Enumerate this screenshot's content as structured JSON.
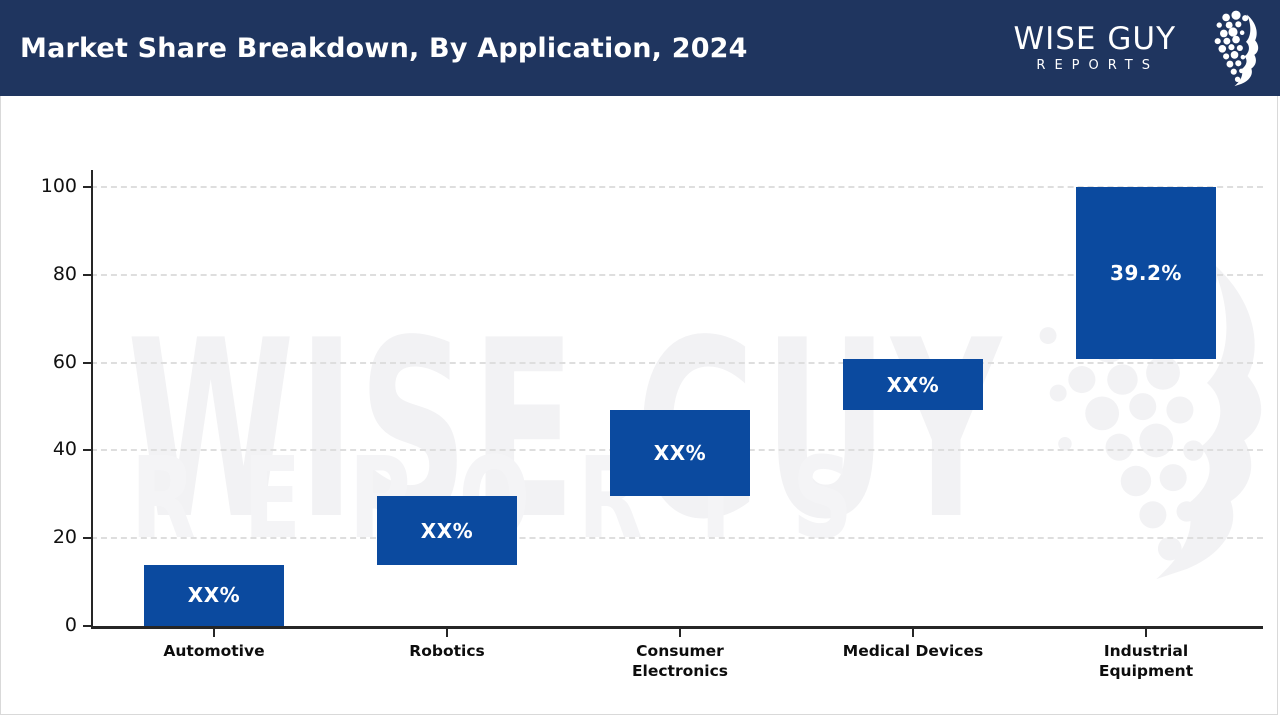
{
  "header": {
    "title": "Market Share Breakdown, By Application, 2024",
    "logo": {
      "wordmark": "WISE GUY",
      "subtitle": "REPORTS"
    }
  },
  "watermark": {
    "wordmark": "WISE GUY",
    "subtitle": "REPORTS"
  },
  "chart_data": {
    "type": "bar",
    "subtype": "floating-waterfall",
    "title": "Market Share Breakdown, By Application, 2024",
    "categories": [
      "Automotive",
      "Robotics",
      "Consumer Electronics",
      "Medical Devices",
      "Industrial Equipment"
    ],
    "segments": [
      {
        "category": "Automotive",
        "start": 0,
        "end": 14,
        "label": "XX%"
      },
      {
        "category": "Robotics",
        "start": 14,
        "end": 29.5,
        "label": "XX%"
      },
      {
        "category": "Consumer Electronics",
        "start": 29.5,
        "end": 49.2,
        "label": "XX%"
      },
      {
        "category": "Medical Devices",
        "start": 49.2,
        "end": 60.8,
        "label": "XX%"
      },
      {
        "category": "Industrial Equipment",
        "start": 60.8,
        "end": 100,
        "label": "39.2%"
      }
    ],
    "yticks": [
      0,
      20,
      40,
      60,
      80,
      100
    ],
    "ylim": [
      0,
      107
    ],
    "xlabel": "",
    "ylabel": "",
    "grid": "horizontal-dashed",
    "legend": "none",
    "colors": {
      "bar": "#0b4a9f",
      "bar_label": "#ffffff",
      "grid": "#dedede",
      "axis": "#262626",
      "tick_label": "#111111",
      "header_bg": "#1f355f",
      "header_text": "#ffffff",
      "watermark": "#f2f2f4"
    }
  }
}
